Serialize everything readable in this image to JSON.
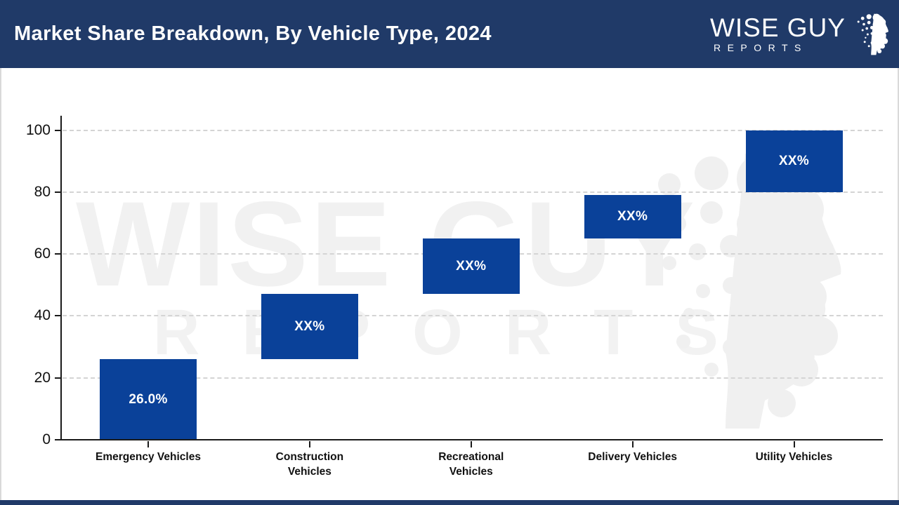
{
  "header": {
    "title": "Market Share Breakdown, By Vehicle Type, 2024",
    "bg_color": "#203a68",
    "logo": {
      "line1": "WISE GUY",
      "line2": "REPORTS"
    }
  },
  "watermark": {
    "line1": "WISE GUY",
    "line2": "REPORTS"
  },
  "footer": {
    "bg_color": "#203a68"
  },
  "chart_data": {
    "type": "bar",
    "subtype": "waterfall",
    "title": "Market Share Breakdown, By Vehicle Type, 2024",
    "categories": [
      "Emergency Vehicles",
      "Construction\nVehicles",
      "Recreational\nVehicles",
      "Delivery Vehicles",
      "Utility Vehicles"
    ],
    "segments": [
      {
        "category": "Emergency Vehicles",
        "start": 0,
        "end": 26,
        "label": "26.0%"
      },
      {
        "category": "Construction Vehicles",
        "start": 26,
        "end": 47,
        "label": "XX%"
      },
      {
        "category": "Recreational Vehicles",
        "start": 47,
        "end": 65,
        "label": "XX%"
      },
      {
        "category": "Delivery Vehicles",
        "start": 65,
        "end": 79,
        "label": "XX%"
      },
      {
        "category": "Utility Vehicles",
        "start": 80,
        "end": 100,
        "label": "XX%"
      }
    ],
    "yticks": [
      0,
      20,
      40,
      60,
      80,
      100
    ],
    "ylim": [
      0,
      105
    ],
    "xlabel": "",
    "ylabel": "",
    "legend": "none",
    "grid": "horizontal-dashed",
    "bar_color": "#0a4199",
    "bar_label_color": "#ffffff",
    "axis_color": "#1a1a1a",
    "grid_color": "#d4d4d4"
  }
}
